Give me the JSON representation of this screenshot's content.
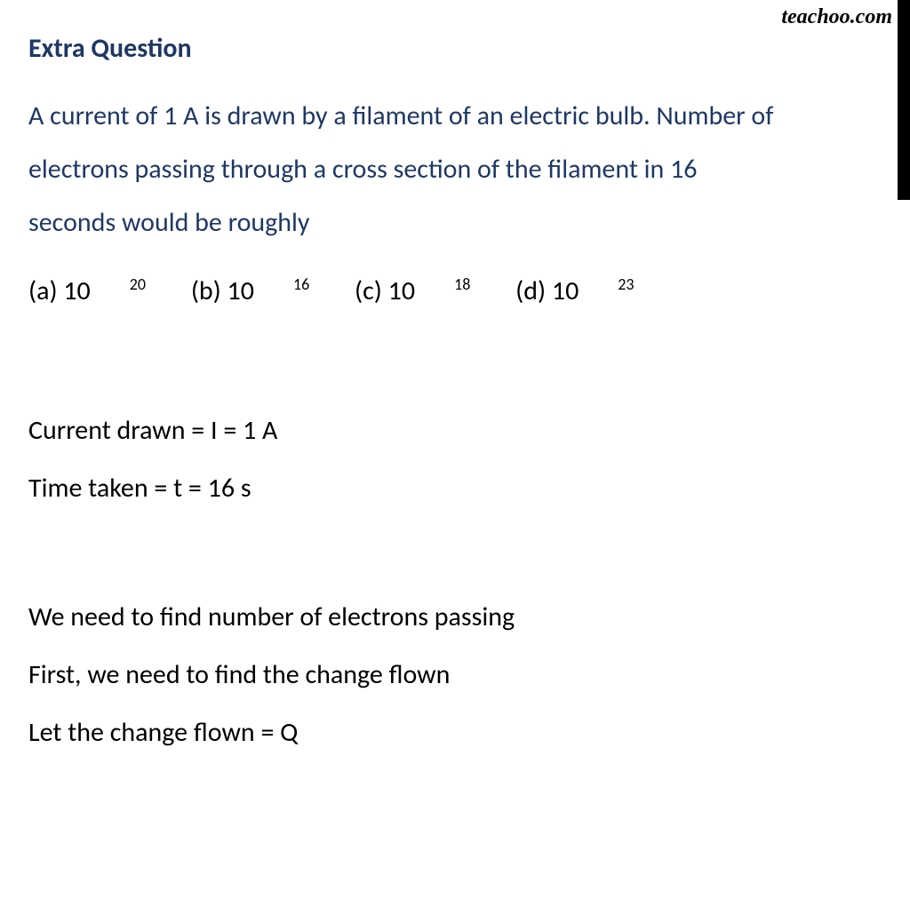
{
  "watermark": "teachoo.com",
  "heading": "Extra Question",
  "question_line1": "A current of 1 A is drawn by a filament of an electric bulb. Number of",
  "question_line2": "electrons passing through a cross section of the filament in 16",
  "question_line3": "seconds would be roughly",
  "options": {
    "a_label": "(a) 10",
    "a_exp": "20",
    "b_label": "(b) 10",
    "b_exp": "16",
    "c_label": "(c) 10",
    "c_exp": "18",
    "d_label": "(d) 10",
    "d_exp": "23"
  },
  "work": {
    "line1": "Current drawn = I = 1 A",
    "line2": "Time taken = t = 16 s",
    "line3": "We need to find number of electrons passing",
    "line4": "First, we need to find the change flown",
    "line5": "Let the change flown = Q"
  },
  "colors": {
    "heading": "#1f3864",
    "question": "#1f3864",
    "body": "#000000",
    "background": "#ffffff"
  },
  "typography": {
    "heading_fontsize_pt": 22,
    "body_fontsize_pt": 22,
    "watermark_fontsize_pt": 18,
    "font_family": "Calibri",
    "watermark_font_family": "Comic Sans MS"
  }
}
